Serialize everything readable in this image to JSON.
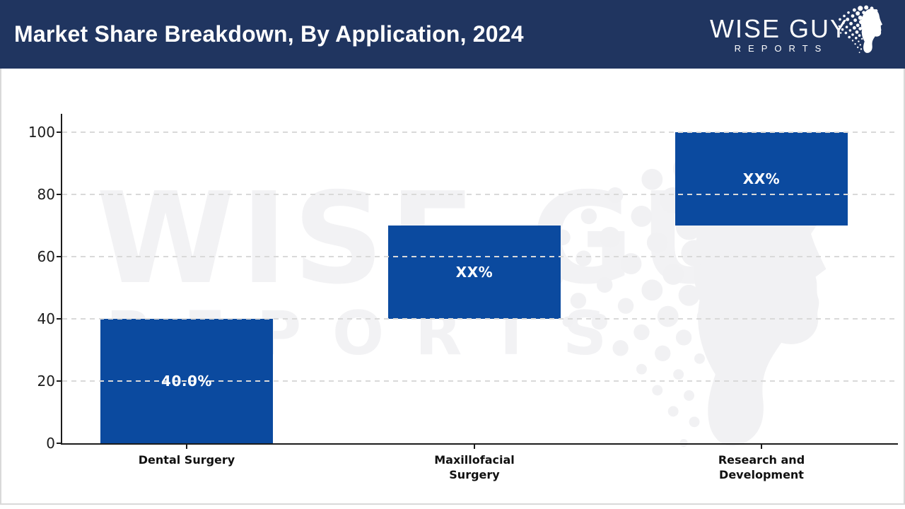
{
  "header": {
    "title": "Market Share Breakdown, By Application, 2024",
    "logo": {
      "line1": "WISE GUY",
      "line2": "REPORTS"
    }
  },
  "watermark": {
    "line1": "WISE GUY",
    "line2": "REPORTS"
  },
  "chart_data": {
    "type": "bar",
    "variant": "floating stepped segments (waterfall-style share breakdown)",
    "title": "Market Share Breakdown, By Application, 2024",
    "categories": [
      "Dental Surgery",
      "Maxillofacial Surgery",
      "Research and Development"
    ],
    "category_lines": [
      [
        "Dental Surgery"
      ],
      [
        "Maxillofacial",
        "Surgery"
      ],
      [
        "Research and",
        "Development"
      ]
    ],
    "segments": [
      {
        "category": "Dental Surgery",
        "start": 0,
        "end": 40,
        "label": "40.0%"
      },
      {
        "category": "Maxillofacial Surgery",
        "start": 40,
        "end": 70,
        "label": "XX%"
      },
      {
        "category": "Research and Development",
        "start": 70,
        "end": 100,
        "label": "XX%"
      }
    ],
    "yticks": [
      0,
      20,
      40,
      60,
      80,
      100
    ],
    "ylim": [
      0,
      106
    ],
    "xlabel": "",
    "ylabel": "",
    "grid": "horizontal-dashed",
    "legend": "none",
    "colors": {
      "bar": "#0b4a9f",
      "grid": "#d9d9d9",
      "axis": "#1c1c1c",
      "value_label": "#ffffff"
    }
  },
  "colors": {
    "header_bg": "#203560",
    "canvas_bg": "#ffffff",
    "frame_border": "#d9d9d9",
    "watermark": "#f2f2f4"
  }
}
